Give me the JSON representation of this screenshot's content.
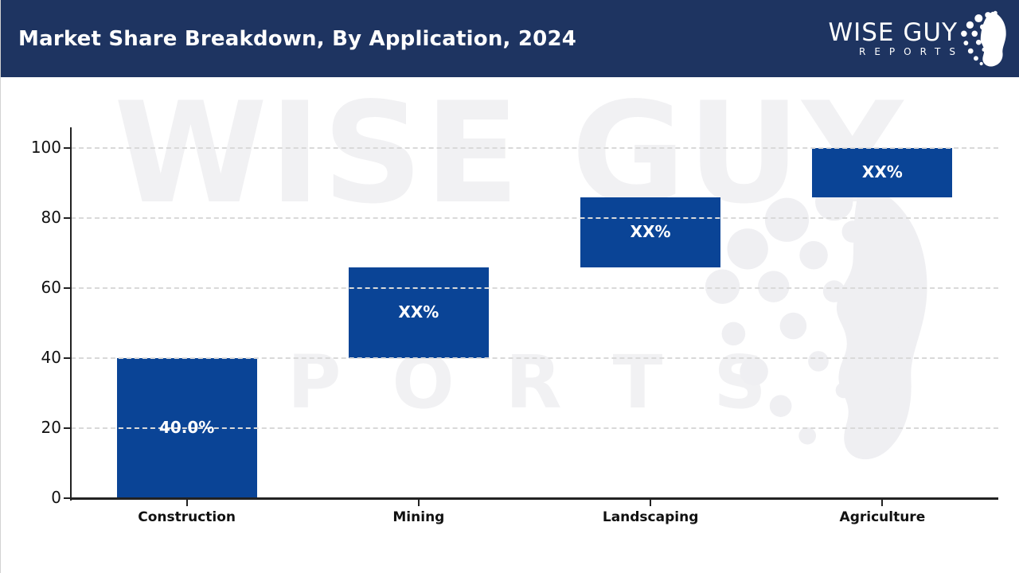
{
  "header": {
    "title": "Market Share Breakdown, By Application, 2024",
    "logo": {
      "line1": "WISE GUY",
      "line2": "REPORTS"
    }
  },
  "watermark": {
    "line1": "WISE GUY",
    "line2": "P O R T S"
  },
  "colors": {
    "header_bg": "#1e3461",
    "bar_blue": "#0a4496",
    "grid": "#d9d9d9",
    "axis": "#222222",
    "text_dark": "#111111",
    "watermark": "#f1f1f3",
    "white": "#ffffff",
    "page_border": "#d2d2d2"
  },
  "chart_data": {
    "type": "bar",
    "subtype": "waterfall",
    "title": "Market Share Breakdown, By Application, 2024",
    "xlabel": "",
    "ylabel": "",
    "categories": [
      "Construction",
      "Mining",
      "Landscaping",
      "Agriculture"
    ],
    "segments": [
      {
        "category": "Construction",
        "start": 0,
        "end": 40,
        "label": "40.0%"
      },
      {
        "category": "Mining",
        "start": 40,
        "end": 66,
        "label": "XX%"
      },
      {
        "category": "Landscaping",
        "start": 66,
        "end": 86,
        "label": "XX%"
      },
      {
        "category": "Agriculture",
        "start": 86,
        "end": 100,
        "label": "XX%"
      }
    ],
    "yticks": [
      0,
      20,
      40,
      60,
      80,
      100
    ],
    "ylim": [
      0,
      105.9
    ],
    "grid": "horizontal-dashed",
    "legend": "none",
    "bar_color": "#0a4496",
    "value_label_color": "#ffffff"
  }
}
